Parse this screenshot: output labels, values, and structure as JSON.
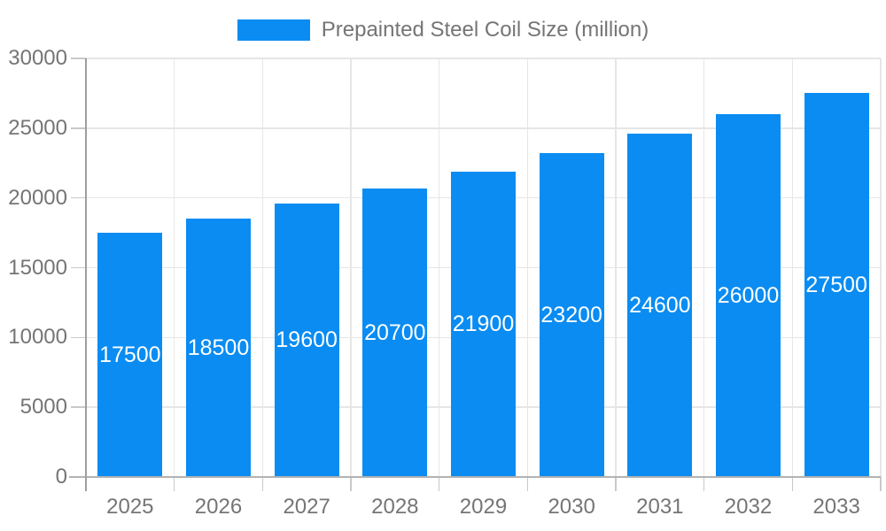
{
  "legend": {
    "label": "Prepainted Steel Coil Size (million)"
  },
  "colors": {
    "bar": "#0a8cf2",
    "axis_text": "#757575",
    "grid": "#e6e6e6",
    "tick": "#c9c9c9",
    "y_axis_line": "#9e9e9e",
    "baseline": "#b3b3b3",
    "value_label": "#ffffff",
    "background": "#ffffff"
  },
  "chart_data": {
    "type": "bar",
    "title": "Prepainted Steel Coil Size (million)",
    "categories": [
      "2025",
      "2026",
      "2027",
      "2028",
      "2029",
      "2030",
      "2031",
      "2032",
      "2033"
    ],
    "values": [
      17500,
      18500,
      19600,
      20700,
      21900,
      23200,
      24600,
      26000,
      27500
    ],
    "series_name": "Prepainted Steel Coil Size (million)",
    "xlabel": "",
    "ylabel": "",
    "ylim": [
      0,
      30000
    ],
    "yticks": [
      0,
      5000,
      10000,
      15000,
      20000,
      25000,
      30000
    ],
    "grid": true,
    "legend_position": "top-center",
    "value_labels": "inside-center"
  }
}
